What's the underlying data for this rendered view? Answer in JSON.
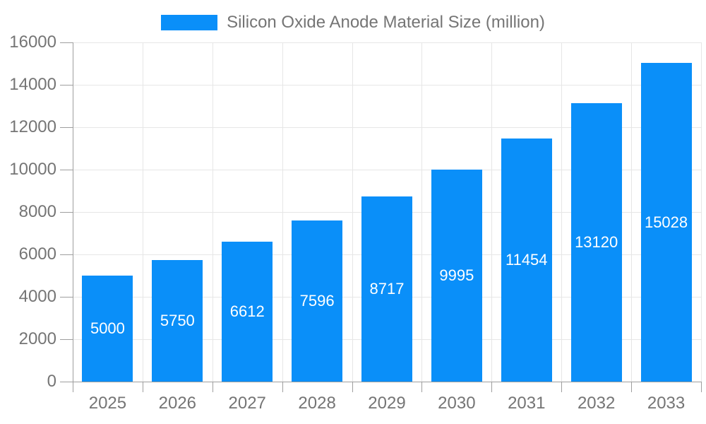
{
  "chart_data": {
    "type": "bar",
    "title": "Silicon Oxide Anode Material Size (million)",
    "categories": [
      "2025",
      "2026",
      "2027",
      "2028",
      "2029",
      "2030",
      "2031",
      "2032",
      "2033"
    ],
    "series": [
      {
        "name": "Silicon Oxide Anode Material Size (million)",
        "values": [
          5000,
          5750,
          6612,
          7596,
          8717,
          9995,
          11454,
          13120,
          15028
        ]
      }
    ],
    "values": [
      5000,
      5750,
      6612,
      7596,
      8717,
      9995,
      11454,
      13120,
      15028
    ],
    "value_labels": [
      "5000",
      "5750",
      "6612",
      "7596",
      "8717",
      "9995",
      "11454",
      "13120",
      "15028"
    ],
    "y_ticks": [
      0,
      2000,
      4000,
      6000,
      8000,
      10000,
      12000,
      14000,
      16000
    ],
    "ylim": [
      0,
      16000
    ],
    "xlabel": "",
    "ylabel": "",
    "grid": true,
    "legend_position": "top",
    "colors": {
      "bar": "#0a8ff9",
      "grid": "#e6e6e6",
      "axis": "#9e9e9e",
      "tick_label_text": "#757575",
      "legend_text": "#757575",
      "bar_value_text": "#ffffff"
    }
  }
}
